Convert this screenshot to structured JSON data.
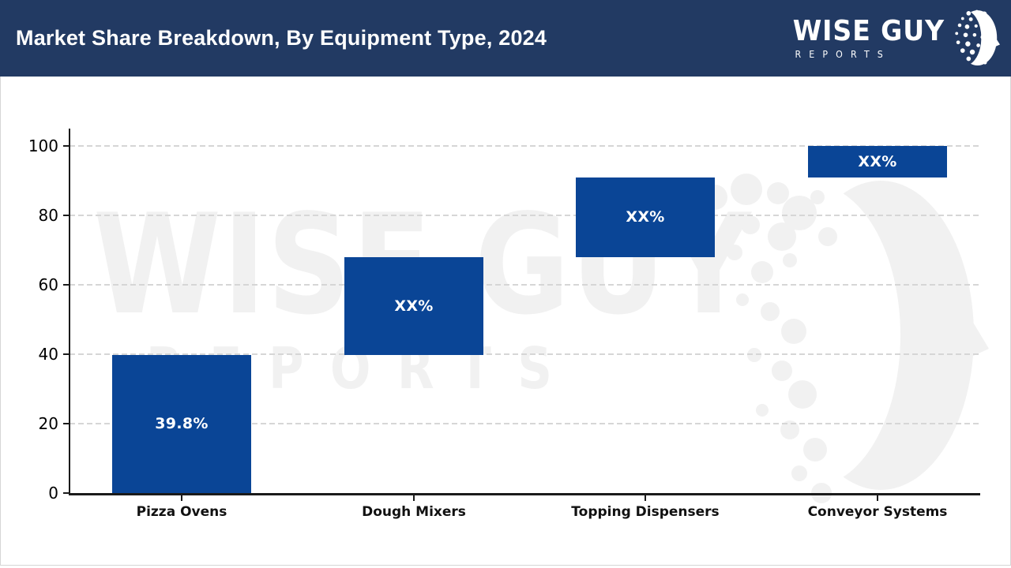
{
  "header": {
    "title": "Market Share Breakdown, By Equipment Type, 2024",
    "logo": {
      "brand_line1": "WISE GUY",
      "brand_line2": "REPORTS",
      "head_icon": "dotted-head-profile-icon"
    }
  },
  "watermark": {
    "line1": "WISE GUY",
    "line2": "REPORTS"
  },
  "chart_data": {
    "type": "bar",
    "subtype": "waterfall",
    "title": "Market Share Breakdown, By Equipment Type, 2024",
    "xlabel": "",
    "ylabel": "",
    "categories": [
      "Pizza Ovens",
      "Dough Mixers",
      "Topping Dispensers",
      "Conveyor Systems"
    ],
    "segments": [
      {
        "category": "Pizza Ovens",
        "start": 0,
        "end": 39.8,
        "label": "39.8%"
      },
      {
        "category": "Dough Mixers",
        "start": 39.8,
        "end": 68,
        "label": "XX%"
      },
      {
        "category": "Topping Dispensers",
        "start": 68,
        "end": 91,
        "label": "XX%"
      },
      {
        "category": "Conveyor Systems",
        "start": 91,
        "end": 100,
        "label": "XX%"
      }
    ],
    "yticks": [
      0,
      20,
      40,
      60,
      80,
      100
    ],
    "ylim": [
      0,
      105
    ],
    "grid": true,
    "grid_style": "dashed",
    "legend_position": "none",
    "colors": {
      "bar": "#0a4596",
      "bar_label": "#ffffff",
      "axis": "#1a1a1a",
      "grid": "#d6d6d6",
      "tick_label": "#000000",
      "category_label": "#111111",
      "header_bg": "#223a63",
      "header_text": "#ffffff",
      "watermark": "#f1f1f1"
    }
  }
}
